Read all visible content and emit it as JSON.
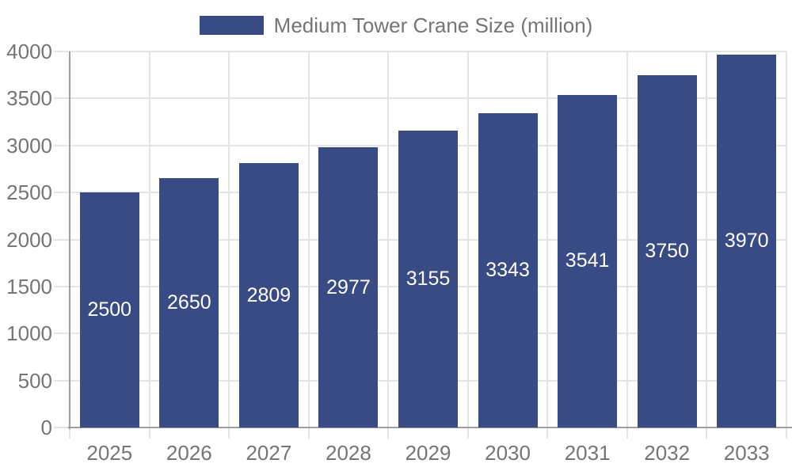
{
  "chart": {
    "legend_label": "Medium Tower Crane Size (million)"
  },
  "colors": {
    "bar": "#384B85",
    "grid": "#E4E4E4",
    "axis": "#9E9E9E",
    "tick_label": "#757575",
    "legend_text": "#757575",
    "value_label": "#FFFFFF",
    "background": "#FFFFFF"
  },
  "chart_data": {
    "type": "bar",
    "title": "Medium Tower Crane Size (million)",
    "categories": [
      "2025",
      "2026",
      "2027",
      "2028",
      "2029",
      "2030",
      "2031",
      "2032",
      "2033"
    ],
    "values": [
      2500,
      2650,
      2809,
      2977,
      3155,
      3343,
      3541,
      3750,
      3970
    ],
    "xlabel": "",
    "ylabel": "",
    "ylim": [
      0,
      4000
    ],
    "yticks": [
      0,
      500,
      1000,
      1500,
      2000,
      2500,
      3000,
      3500,
      4000
    ],
    "grid": true,
    "legend_position": "top",
    "value_label_position": "inside-center",
    "bar_color": "#384B85"
  }
}
